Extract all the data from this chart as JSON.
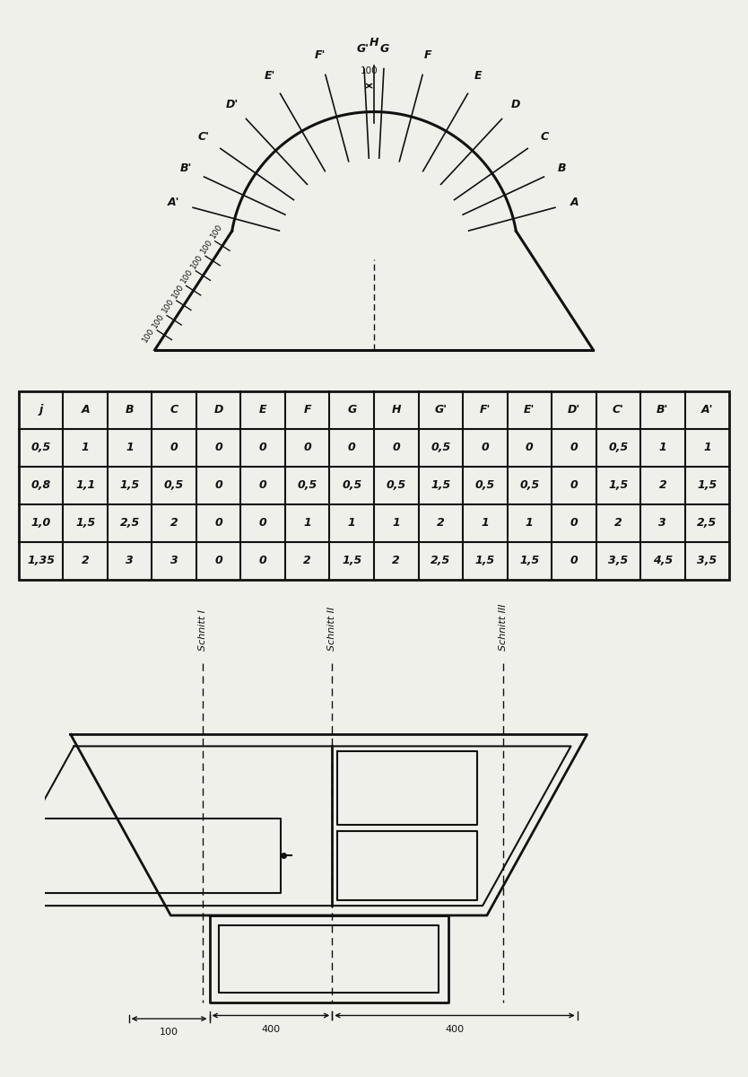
{
  "table_headers": [
    "j",
    "A",
    "B",
    "C",
    "D",
    "E",
    "F",
    "G",
    "H",
    "G'",
    "F'",
    "E'",
    "D'",
    "C'",
    "B'",
    "A'"
  ],
  "table_rows": [
    [
      "0,5",
      "1",
      "1",
      "0",
      "0",
      "0",
      "0",
      "0",
      "0",
      "0,5",
      "0",
      "0",
      "0",
      "0,5",
      "1",
      "1"
    ],
    [
      "0,8",
      "1,1",
      "1,5",
      "0,5",
      "0",
      "0",
      "0,5",
      "0,5",
      "0,5",
      "1,5",
      "0,5",
      "0,5",
      "0",
      "1,5",
      "2",
      "1,5"
    ],
    [
      "1,0",
      "1,5",
      "2,5",
      "2",
      "0",
      "0",
      "1",
      "1",
      "1",
      "2",
      "1",
      "1",
      "0",
      "2",
      "3",
      "2,5"
    ],
    [
      "1,35",
      "2",
      "3",
      "3",
      "0",
      "0",
      "2",
      "1,5",
      "2",
      "2,5",
      "1,5",
      "1,5",
      "0",
      "3,5",
      "4,5",
      "3,5"
    ]
  ],
  "bg_color": "#f0f0eb",
  "line_color": "#111111",
  "schnitt_labels": [
    "Schnitt I",
    "Schnitt II",
    "Schnitt III"
  ],
  "left_angles_deg": [
    165,
    155,
    145,
    133,
    120,
    105,
    93
  ],
  "right_angles_deg": [
    15,
    25,
    35,
    47,
    60,
    75,
    87
  ],
  "left_labels": [
    "A'",
    "B'",
    "C'",
    "D'",
    "E'",
    "F'",
    "G'"
  ],
  "right_labels": [
    "A",
    "B",
    "C",
    "D",
    "E",
    "F",
    "G"
  ]
}
